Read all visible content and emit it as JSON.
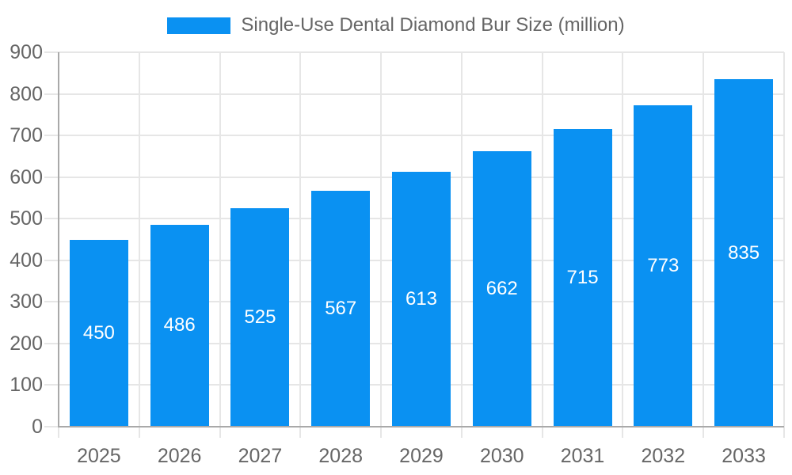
{
  "chart_data": {
    "type": "bar",
    "title": "Single-Use Dental Diamond Bur Size (million)",
    "legend_position": "top",
    "categories": [
      "2025",
      "2026",
      "2027",
      "2028",
      "2029",
      "2030",
      "2031",
      "2032",
      "2033"
    ],
    "values": [
      450,
      486,
      525,
      567,
      613,
      662,
      715,
      773,
      835
    ],
    "xlabel": "",
    "ylabel": "",
    "ylim": [
      0,
      900
    ],
    "yticks": [
      0,
      100,
      200,
      300,
      400,
      500,
      600,
      700,
      800,
      900
    ],
    "grid": true,
    "bar_value_labels_visible": true,
    "colors": {
      "bar": "#0a91f2",
      "bar_label": "#ffffff",
      "axis_text": "#666666",
      "grid_line": "#e6e6e6",
      "axis_line": "#a9a9a9",
      "background": "#ffffff"
    }
  }
}
